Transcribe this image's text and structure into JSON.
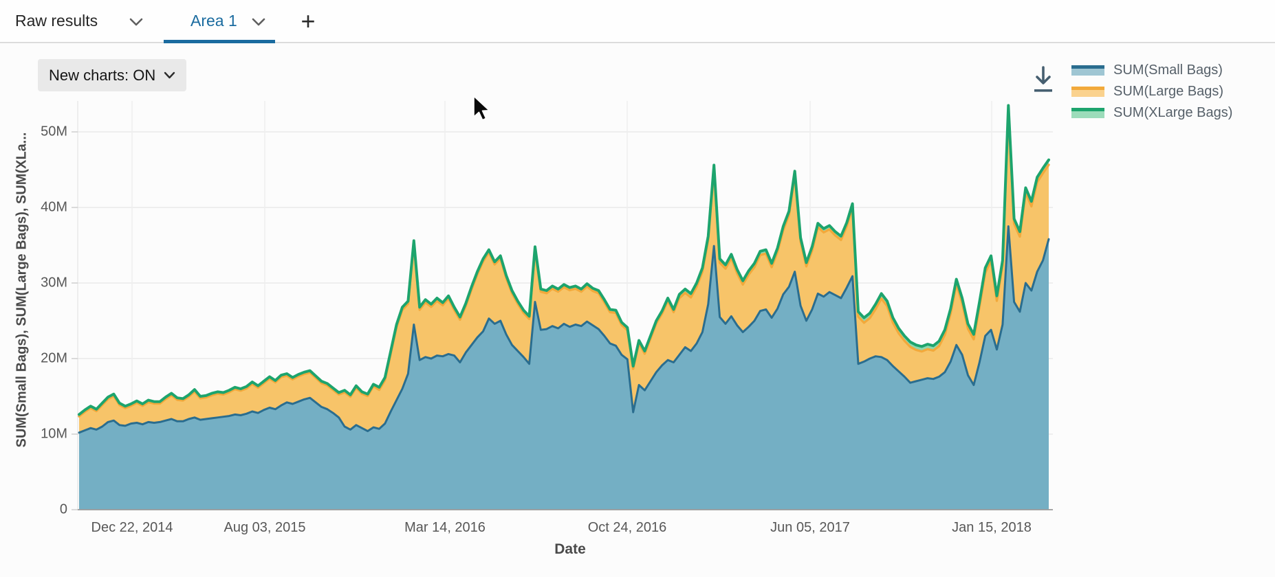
{
  "tabs": {
    "raw_results": "Raw results",
    "area1": "Area 1",
    "add": "+"
  },
  "toolbar": {
    "new_charts_toggle": "New charts: ON",
    "download_icon": "download",
    "accent_blue": "#1a6b9f"
  },
  "legend": [
    {
      "label": "SUM(Small Bags)",
      "line": "#2a6d8f",
      "fill": "#9fc6d3"
    },
    {
      "label": "SUM(Large Bags)",
      "line": "#f2a93b",
      "fill": "#fad28e"
    },
    {
      "label": "SUM(XLarge Bags)",
      "line": "#1da46d",
      "fill": "#9cdcba"
    }
  ],
  "chart_data": {
    "type": "area",
    "stacked": true,
    "title": "",
    "xlabel": "Date",
    "ylabel": "SUM(Small Bags), SUM(Large Bags), SUM(XLa...",
    "x_tick_labels": [
      "Dec 22, 2014",
      "Aug 03, 2015",
      "Mar 14, 2016",
      "Oct 24, 2016",
      "Jun 05, 2017",
      "Jan 15, 2018"
    ],
    "y_tick_labels": [
      "0",
      "10M",
      "20M",
      "30M",
      "40M",
      "50M"
    ],
    "y_unit": "millions",
    "ylim": [
      0,
      54
    ],
    "grid": true,
    "legend_position": "top-right",
    "x_is_weekly_time_axis": true,
    "series": [
      {
        "name": "SUM(Small Bags)",
        "line_color": "#2a6d8f",
        "fill_color": "#74afc4",
        "values": [
          10.2,
          10.5,
          10.8,
          10.6,
          11.0,
          11.6,
          11.8,
          11.2,
          11.1,
          11.4,
          11.5,
          11.3,
          11.6,
          11.5,
          11.6,
          11.8,
          12.0,
          11.7,
          11.7,
          12.0,
          12.2,
          11.9,
          12.0,
          12.1,
          12.2,
          12.3,
          12.4,
          12.6,
          12.5,
          12.7,
          13.0,
          12.8,
          13.2,
          13.5,
          13.3,
          13.8,
          14.2,
          14.0,
          14.3,
          14.6,
          14.8,
          14.2,
          13.6,
          13.3,
          12.8,
          12.2,
          11.0,
          10.6,
          11.2,
          10.8,
          10.4,
          10.9,
          10.7,
          11.4,
          13.0,
          14.5,
          16.0,
          18.0,
          24.5,
          19.8,
          20.2,
          20.0,
          20.4,
          20.3,
          20.6,
          20.4,
          19.5,
          20.8,
          21.8,
          22.8,
          23.6,
          25.3,
          24.6,
          25.0,
          23.2,
          21.8,
          21.0,
          20.2,
          19.3,
          27.5,
          23.8,
          23.9,
          24.3,
          24.0,
          24.6,
          24.2,
          24.5,
          24.3,
          24.9,
          24.4,
          23.9,
          23.0,
          22.0,
          21.7,
          20.5,
          19.9,
          12.9,
          16.5,
          15.8,
          17.0,
          18.2,
          19.1,
          19.8,
          19.5,
          20.5,
          21.5,
          21.0,
          22.0,
          23.5,
          27.2,
          34.9,
          25.5,
          24.6,
          25.6,
          24.4,
          23.5,
          24.2,
          25.0,
          26.3,
          26.5,
          25.4,
          26.6,
          28.5,
          29.5,
          31.5,
          27.0,
          25.0,
          26.5,
          28.6,
          28.2,
          28.8,
          28.4,
          28.0,
          29.4,
          30.9,
          19.3,
          19.6,
          20.0,
          20.3,
          20.2,
          19.8,
          19.0,
          18.3,
          17.6,
          16.8,
          17.0,
          17.2,
          17.4,
          17.3,
          17.6,
          18.2,
          19.6,
          21.8,
          20.5,
          17.8,
          16.5,
          19.5,
          23.0,
          23.8,
          21.2,
          24.5,
          37.5,
          27.5,
          26.2,
          30.0,
          29.0,
          31.5,
          33.0,
          35.8
        ]
      },
      {
        "name": "SUM(Large Bags)",
        "line_color": "#f2a93b",
        "fill_color": "#f7c469",
        "values": [
          2.15,
          2.45,
          2.65,
          2.45,
          2.85,
          3.05,
          3.25,
          2.65,
          2.35,
          2.35,
          2.65,
          2.45,
          2.65,
          2.55,
          2.45,
          2.85,
          3.15,
          2.85,
          2.75,
          2.95,
          3.45,
          2.85,
          2.85,
          3.05,
          3.15,
          2.95,
          3.15,
          3.35,
          3.25,
          3.35,
          3.65,
          3.35,
          3.55,
          3.85,
          3.55,
          3.75,
          3.55,
          3.25,
          3.35,
          3.35,
          3.35,
          3.25,
          3.15,
          3.15,
          3.05,
          3.05,
          4.55,
          4.35,
          4.95,
          4.55,
          4.65,
          5.45,
          5.15,
          5.75,
          7.65,
          9.65,
          10.45,
          9.25,
          10.75,
          6.65,
          7.25,
          6.85,
          7.25,
          6.75,
          7.35,
          6.05,
          5.65,
          6.15,
          7.35,
          8.35,
          9.25,
          8.75,
          7.85,
          8.25,
          7.45,
          6.85,
          6.25,
          5.85,
          5.95,
          6.95,
          5.05,
          4.75,
          4.95,
          4.85,
          4.85,
          4.85,
          4.75,
          4.55,
          4.65,
          4.55,
          4.75,
          4.45,
          4.15,
          4.35,
          3.95,
          3.85,
          5.75,
          5.55,
          4.85,
          5.65,
          6.45,
          6.85,
          7.85,
          6.65,
          7.5,
          7.2,
          7.1,
          7.5,
          8.0,
          8.5,
          10.2,
          7.2,
          7.3,
          7.7,
          6.9,
          6.3,
          6.9,
          7.1,
          7.4,
          7.4,
          6.7,
          7.5,
          8.5,
          9.5,
          12.8,
          8.5,
          7.2,
          7.8,
          8.8,
          8.5,
          8.3,
          7.9,
          7.7,
          8.1,
          9.1,
          6.25,
          5.15,
          5.35,
          6.25,
          7.75,
          7.15,
          5.75,
          5.05,
          4.75,
          4.75,
          4.15,
          3.75,
          3.85,
          3.75,
          4.05,
          4.95,
          6.35,
          8.05,
          6.85,
          6.15,
          6.05,
          7.35,
          8.35,
          9.15,
          6.45,
          7.85,
          15.35,
          10.35,
          9.95,
          11.95,
          11.15,
          11.85,
          11.55,
          9.85
        ]
      },
      {
        "name": "SUM(XLarge Bags)",
        "line_color": "#1da46d",
        "fill_color": "#8ed8ae",
        "values": [
          0.25,
          0.25,
          0.25,
          0.25,
          0.25,
          0.25,
          0.25,
          0.25,
          0.25,
          0.25,
          0.25,
          0.25,
          0.25,
          0.25,
          0.25,
          0.25,
          0.25,
          0.25,
          0.25,
          0.25,
          0.25,
          0.25,
          0.25,
          0.25,
          0.25,
          0.25,
          0.25,
          0.25,
          0.25,
          0.25,
          0.25,
          0.25,
          0.25,
          0.25,
          0.25,
          0.25,
          0.25,
          0.25,
          0.25,
          0.25,
          0.25,
          0.25,
          0.25,
          0.25,
          0.25,
          0.25,
          0.25,
          0.25,
          0.25,
          0.25,
          0.25,
          0.25,
          0.35,
          0.35,
          0.35,
          0.35,
          0.35,
          0.35,
          0.35,
          0.35,
          0.35,
          0.35,
          0.35,
          0.35,
          0.35,
          0.35,
          0.35,
          0.35,
          0.35,
          0.35,
          0.35,
          0.35,
          0.35,
          0.35,
          0.35,
          0.35,
          0.35,
          0.35,
          0.35,
          0.35,
          0.35,
          0.35,
          0.35,
          0.35,
          0.35,
          0.35,
          0.35,
          0.35,
          0.35,
          0.35,
          0.35,
          0.35,
          0.35,
          0.35,
          0.35,
          0.35,
          0.35,
          0.35,
          0.35,
          0.35,
          0.35,
          0.35,
          0.35,
          0.35,
          0.5,
          0.5,
          0.5,
          0.5,
          0.5,
          0.5,
          0.5,
          0.5,
          0.5,
          0.5,
          0.5,
          0.5,
          0.5,
          0.5,
          0.5,
          0.5,
          0.5,
          0.5,
          0.5,
          0.5,
          0.5,
          0.5,
          0.5,
          0.5,
          0.5,
          0.5,
          0.5,
          0.5,
          0.5,
          0.5,
          0.5,
          0.65,
          0.65,
          0.65,
          0.65,
          0.65,
          0.65,
          0.65,
          0.65,
          0.65,
          0.65,
          0.65,
          0.65,
          0.65,
          0.65,
          0.65,
          0.65,
          0.65,
          0.65,
          0.65,
          0.65,
          0.65,
          0.65,
          0.65,
          0.65,
          0.65,
          0.65,
          0.65,
          0.65,
          0.65,
          0.65,
          0.65,
          0.65,
          0.65,
          0.65
        ]
      }
    ]
  }
}
